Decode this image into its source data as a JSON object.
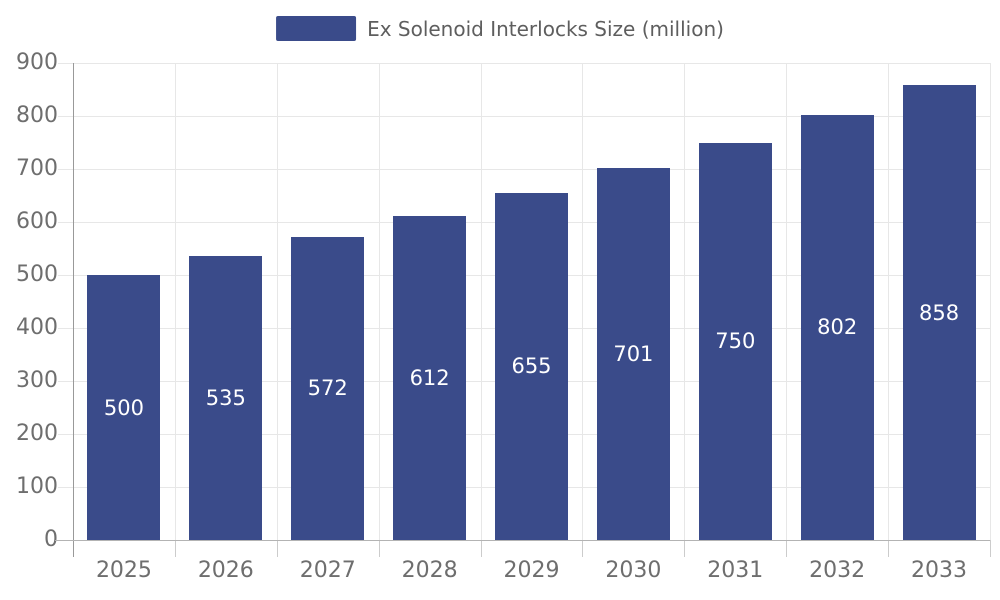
{
  "chart_data": {
    "type": "bar",
    "title": "Ex Solenoid Interlocks Size (million)",
    "legend": [
      "Ex Solenoid Interlocks Size (million)"
    ],
    "legend_position": "top-center",
    "categories": [
      "2025",
      "2026",
      "2027",
      "2028",
      "2029",
      "2030",
      "2031",
      "2032",
      "2033"
    ],
    "series": [
      {
        "name": "Ex Solenoid Interlocks Size (million)",
        "values": [
          500,
          535,
          572,
          612,
          655,
          701,
          750,
          802,
          858
        ]
      }
    ],
    "bar_value_labels": [
      500,
      535,
      572,
      612,
      655,
      701,
      750,
      802,
      858
    ],
    "xlabel": "",
    "ylabel": "",
    "ylim": [
      0,
      900
    ],
    "yticks": [
      0,
      100,
      200,
      300,
      400,
      500,
      600,
      700,
      800,
      900
    ],
    "grid": true
  },
  "colors": {
    "bar": "#3A4B8A",
    "bar_value_label": "#FFFFFF",
    "grid": "#E7E7E7",
    "y_axis_line": "#999999",
    "x_axis_line": "#B3B3B3",
    "x_tick_mark": "#CCCCCC",
    "tick_label": "#6E6E6E",
    "legend_text": "#5E5E5E",
    "background": "#FFFFFF"
  }
}
